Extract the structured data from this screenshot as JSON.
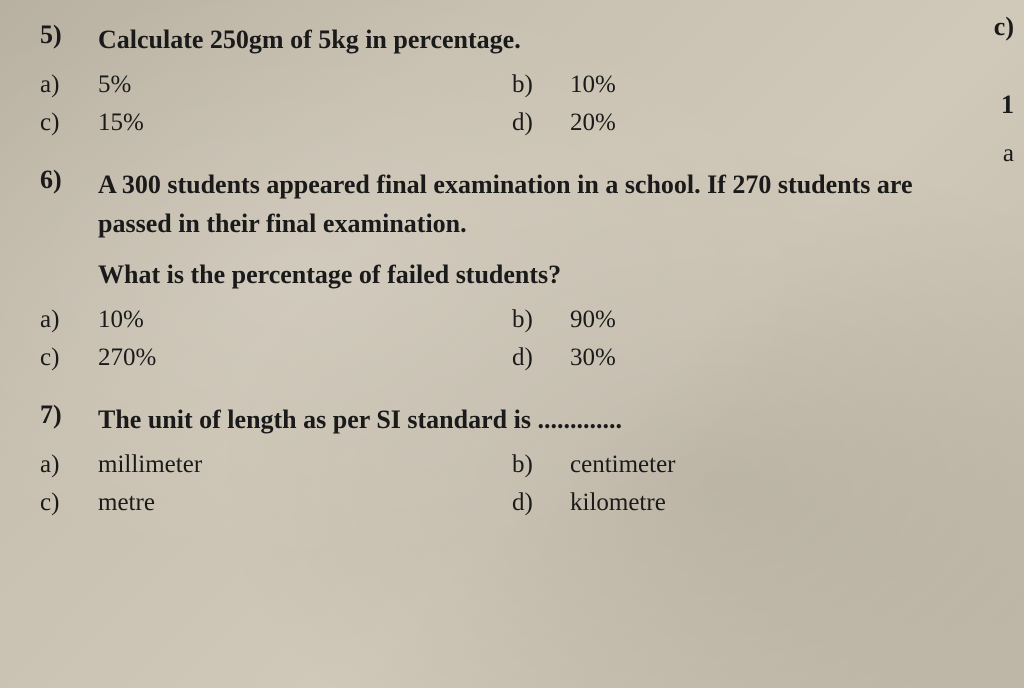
{
  "page": {
    "background_color": "#c8c0b0",
    "text_color": "#1a1a1a",
    "font_family": "Georgia, Times New Roman, serif"
  },
  "questions": [
    {
      "number": "5)",
      "text": "Calculate 250gm of 5kg in percentage.",
      "options": {
        "a": {
          "label": "a)",
          "text": "5%"
        },
        "b": {
          "label": "b)",
          "text": "10%"
        },
        "c": {
          "label": "c)",
          "text": "15%"
        },
        "d": {
          "label": "d)",
          "text": "20%"
        }
      }
    },
    {
      "number": "6)",
      "text": "A 300 students appeared final examination in a school. If 270 students are passed in their final examination.",
      "subtext": "What is the percentage of failed students?",
      "options": {
        "a": {
          "label": "a)",
          "text": "10%"
        },
        "b": {
          "label": "b)",
          "text": "90%"
        },
        "c": {
          "label": "c)",
          "text": "270%"
        },
        "d": {
          "label": "d)",
          "text": "30%"
        }
      }
    },
    {
      "number": "7)",
      "text": "The unit of length as per SI standard is .............",
      "options": {
        "a": {
          "label": "a)",
          "text": "millimeter"
        },
        "b": {
          "label": "b)",
          "text": "centimeter"
        },
        "c": {
          "label": "c)",
          "text": "metre"
        },
        "d": {
          "label": "d)",
          "text": "kilometre"
        }
      }
    }
  ],
  "edge_fragments": {
    "top": "c)",
    "mid": "1",
    "low": "a"
  }
}
